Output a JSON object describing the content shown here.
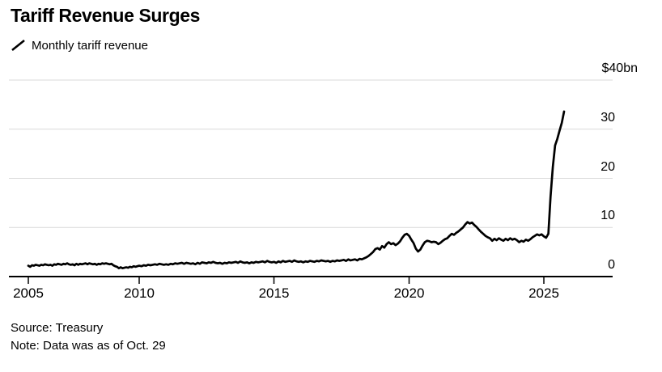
{
  "header": {
    "title": "Tariff Revenue Surges"
  },
  "legend": {
    "series_label": "Monthly tariff revenue"
  },
  "y_axis": {
    "labels": [
      "$40bn",
      "30",
      "20",
      "10",
      "0"
    ],
    "unit": "$bn"
  },
  "x_axis": {
    "labels": [
      "2005",
      "2010",
      "2015",
      "2020",
      "2025"
    ]
  },
  "footer": {
    "source": "Source: Treasury",
    "note": "Note: Data was as of Oct. 29"
  },
  "colors": {
    "line": "#000000",
    "gridline": "#d9d9d9",
    "axis_baseline": "#000000",
    "text": "#000000",
    "background": "#ffffff"
  },
  "chart_data": {
    "type": "line",
    "title": "Tariff Revenue Surges",
    "legend_entries": [
      "Monthly tariff revenue"
    ],
    "xlabel": "",
    "ylabel": "$bn",
    "x_ticks": [
      2005,
      2010,
      2015,
      2020,
      2025
    ],
    "y_ticks": [
      0,
      10,
      20,
      30,
      40
    ],
    "ylim": [
      0,
      40
    ],
    "grid": "horizontal",
    "legend_position": "top-left",
    "source": "Source: Treasury",
    "note": "Note: Data was as of Oct. 29",
    "series": [
      {
        "name": "Monthly tariff revenue",
        "unit": "$bn",
        "frequency": "monthly",
        "start_year": 2005,
        "start_month": 1,
        "end_year": 2025,
        "end_month": 10,
        "values": [
          2.2,
          2.0,
          2.3,
          2.2,
          2.4,
          2.3,
          2.2,
          2.4,
          2.3,
          2.5,
          2.4,
          2.3,
          2.4,
          2.2,
          2.5,
          2.4,
          2.6,
          2.5,
          2.4,
          2.6,
          2.5,
          2.7,
          2.5,
          2.4,
          2.5,
          2.3,
          2.6,
          2.4,
          2.6,
          2.5,
          2.6,
          2.7,
          2.5,
          2.7,
          2.6,
          2.5,
          2.6,
          2.4,
          2.6,
          2.5,
          2.7,
          2.6,
          2.7,
          2.6,
          2.5,
          2.6,
          2.3,
          2.1,
          2.0,
          1.7,
          1.9,
          1.7,
          1.8,
          1.9,
          1.8,
          2.0,
          1.9,
          2.1,
          2.0,
          2.1,
          2.2,
          2.1,
          2.3,
          2.2,
          2.4,
          2.3,
          2.4,
          2.5,
          2.4,
          2.6,
          2.5,
          2.4,
          2.5,
          2.4,
          2.6,
          2.5,
          2.7,
          2.6,
          2.7,
          2.8,
          2.6,
          2.8,
          2.7,
          2.6,
          2.7,
          2.5,
          2.8,
          2.6,
          2.9,
          2.8,
          2.7,
          2.9,
          2.8,
          3.0,
          2.8,
          2.7,
          2.8,
          2.6,
          2.8,
          2.7,
          2.9,
          2.8,
          2.9,
          3.0,
          2.8,
          3.1,
          2.9,
          2.8,
          2.9,
          2.7,
          2.9,
          2.8,
          3.0,
          2.9,
          3.0,
          3.1,
          2.9,
          3.2,
          3.0,
          2.9,
          3.0,
          2.8,
          3.1,
          2.9,
          3.2,
          3.0,
          3.1,
          3.2,
          3.0,
          3.3,
          3.1,
          3.0,
          3.1,
          2.9,
          3.1,
          3.0,
          3.2,
          3.1,
          3.0,
          3.2,
          3.1,
          3.3,
          3.2,
          3.1,
          3.2,
          3.0,
          3.2,
          3.1,
          3.3,
          3.2,
          3.3,
          3.4,
          3.2,
          3.5,
          3.3,
          3.4,
          3.5,
          3.3,
          3.6,
          3.5,
          3.7,
          3.9,
          4.2,
          4.6,
          5.0,
          5.6,
          5.8,
          5.5,
          6.2,
          5.9,
          6.6,
          7.0,
          6.6,
          6.8,
          6.4,
          6.7,
          7.2,
          7.9,
          8.5,
          8.7,
          8.3,
          7.5,
          6.8,
          5.7,
          5.1,
          5.5,
          6.3,
          7.0,
          7.3,
          7.2,
          7.0,
          7.1,
          7.0,
          6.6,
          6.9,
          7.3,
          7.6,
          7.8,
          8.3,
          8.7,
          8.5,
          8.9,
          9.2,
          9.6,
          10.0,
          10.6,
          11.1,
          10.8,
          11.0,
          10.5,
          10.1,
          9.6,
          9.1,
          8.7,
          8.3,
          8.0,
          7.8,
          7.3,
          7.7,
          7.4,
          7.8,
          7.5,
          7.3,
          7.7,
          7.4,
          7.8,
          7.5,
          7.7,
          7.4,
          7.0,
          7.3,
          7.1,
          7.5,
          7.3,
          7.6,
          8.0,
          8.3,
          8.6,
          8.4,
          8.6,
          8.2,
          7.9,
          8.7,
          16.3,
          22.3,
          26.7,
          28.0,
          29.7,
          31.3,
          33.6
        ]
      }
    ]
  }
}
